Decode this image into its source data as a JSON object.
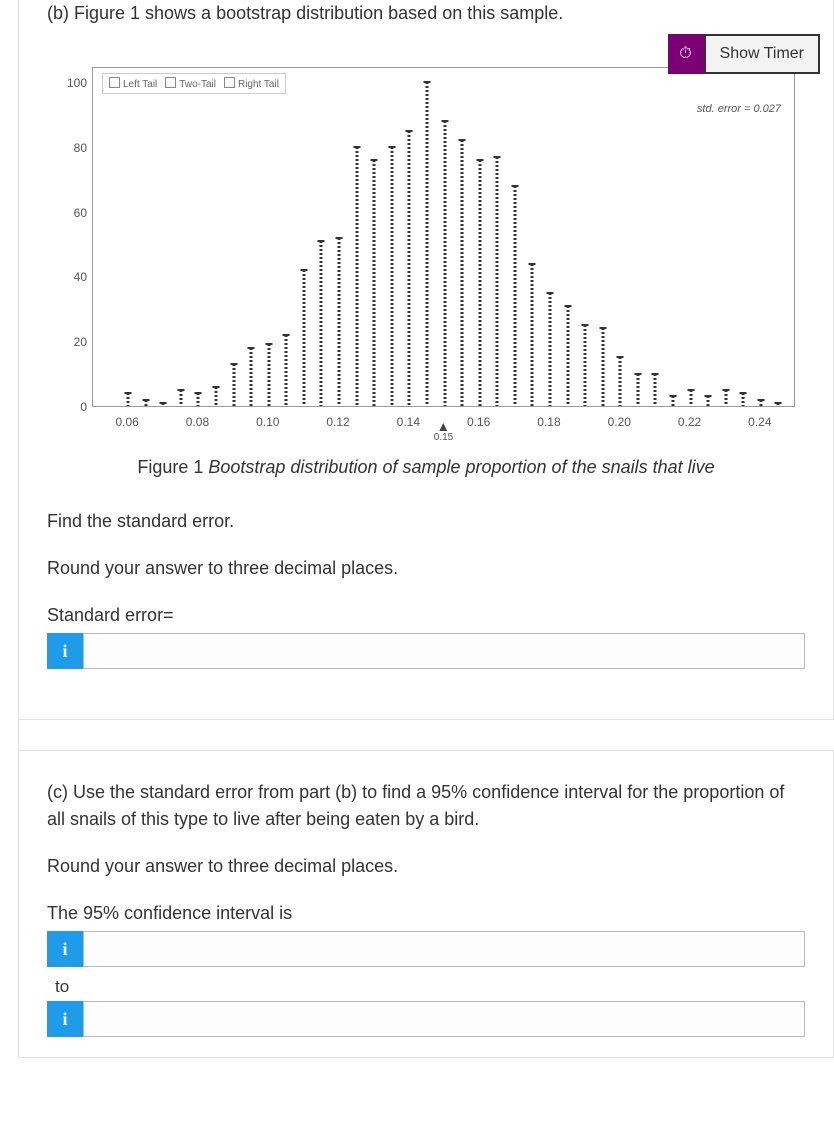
{
  "timer": {
    "label": "Show Timer",
    "icon": "⏱"
  },
  "partB": {
    "intro": "(b) Figure 1 shows a bootstrap distribution based on this sample.",
    "caption_prefix": "Figure 1 ",
    "caption_desc": "Bootstrap distribution of sample proportion of the snails that live",
    "find_text": "Find the standard error.",
    "round_text": "Round your answer to three decimal places.",
    "label": "Standard error=",
    "info_icon": "i"
  },
  "partC": {
    "intro": "(c) Use the standard error from part (b) to find a 95% confidence interval for the proportion of all snails of this type to live after being eaten by a bird.",
    "round_text": "Round your answer to three decimal places.",
    "label": "The 95% confidence interval is",
    "to": "to",
    "info_icon": "i"
  },
  "chart": {
    "type": "bar",
    "x_min": 0.05,
    "x_max": 0.25,
    "y_min": 0,
    "y_max": 105,
    "y_ticks": [
      0,
      20,
      40,
      60,
      80,
      100
    ],
    "x_ticks": [
      0.06,
      0.08,
      0.1,
      0.12,
      0.14,
      0.16,
      0.18,
      0.2,
      0.22,
      0.24
    ],
    "x_tick_labels": [
      "0.06",
      "0.08",
      "0.10",
      "0.12",
      "0.14",
      "0.16",
      "0.18",
      "0.20",
      "0.22",
      "0.24"
    ],
    "bars": [
      {
        "x": 0.06,
        "y": 4
      },
      {
        "x": 0.065,
        "y": 2
      },
      {
        "x": 0.07,
        "y": 1
      },
      {
        "x": 0.075,
        "y": 5
      },
      {
        "x": 0.08,
        "y": 4
      },
      {
        "x": 0.085,
        "y": 6
      },
      {
        "x": 0.09,
        "y": 13
      },
      {
        "x": 0.095,
        "y": 18
      },
      {
        "x": 0.1,
        "y": 19
      },
      {
        "x": 0.105,
        "y": 22
      },
      {
        "x": 0.11,
        "y": 42
      },
      {
        "x": 0.115,
        "y": 51
      },
      {
        "x": 0.12,
        "y": 52
      },
      {
        "x": 0.125,
        "y": 80
      },
      {
        "x": 0.13,
        "y": 76
      },
      {
        "x": 0.135,
        "y": 80
      },
      {
        "x": 0.14,
        "y": 85
      },
      {
        "x": 0.145,
        "y": 100
      },
      {
        "x": 0.15,
        "y": 88
      },
      {
        "x": 0.155,
        "y": 82
      },
      {
        "x": 0.16,
        "y": 76
      },
      {
        "x": 0.165,
        "y": 77
      },
      {
        "x": 0.17,
        "y": 68
      },
      {
        "x": 0.175,
        "y": 44
      },
      {
        "x": 0.18,
        "y": 35
      },
      {
        "x": 0.185,
        "y": 31
      },
      {
        "x": 0.19,
        "y": 25
      },
      {
        "x": 0.195,
        "y": 24
      },
      {
        "x": 0.2,
        "y": 15
      },
      {
        "x": 0.205,
        "y": 10
      },
      {
        "x": 0.21,
        "y": 10
      },
      {
        "x": 0.215,
        "y": 3
      },
      {
        "x": 0.22,
        "y": 5
      },
      {
        "x": 0.225,
        "y": 3
      },
      {
        "x": 0.23,
        "y": 5
      },
      {
        "x": 0.235,
        "y": 4
      },
      {
        "x": 0.24,
        "y": 2
      },
      {
        "x": 0.245,
        "y": 1
      }
    ],
    "legend": [
      "Left Tail",
      "Two-Tail",
      "Right Tail"
    ],
    "stderr_label": "std. error = 0.027",
    "marker": {
      "x": 0.15,
      "label": "0.15"
    },
    "bar_color": "#333333",
    "background_color": "#ffffff",
    "axis_color": "#999999",
    "tick_fontsize": 12
  }
}
